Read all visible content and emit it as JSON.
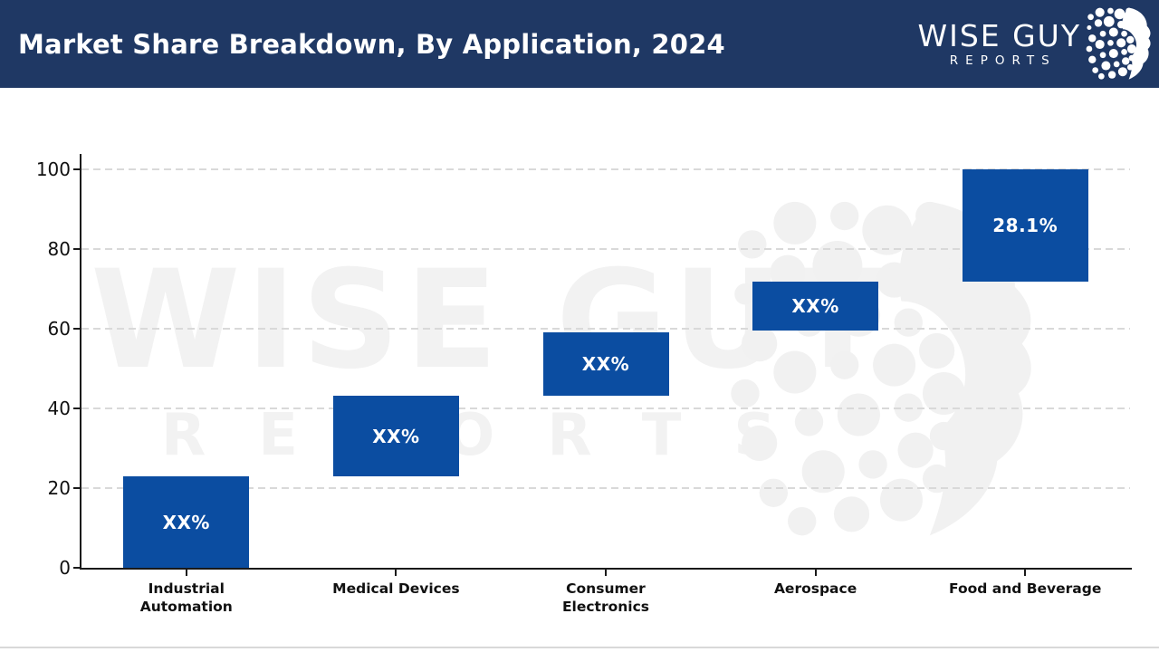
{
  "header": {
    "title": "Market Share Breakdown, By Application, 2024",
    "logo": {
      "primary": "WISE GUY",
      "secondary": "REPORTS"
    }
  },
  "watermark": {
    "primary": "WISE GUY",
    "secondary": "REPORTS"
  },
  "colors": {
    "header_bg": "#1f3864",
    "bar": "#0b4da1",
    "bar_label": "#ffffff",
    "grid": "#d9d9d9",
    "axis": "#1a1a1a",
    "watermark": "#f2f2f2"
  },
  "chart_data": {
    "type": "bar",
    "subtype": "waterfall",
    "title": "Market Share Breakdown, By Application, 2024",
    "categories": [
      "Industrial Automation",
      "Medical Devices",
      "Consumer Electronics",
      "Aerospace",
      "Food and Beverage"
    ],
    "category_label_lines": [
      [
        "Industrial",
        "Automation"
      ],
      [
        "Medical Devices"
      ],
      [
        "Consumer",
        "Electronics"
      ],
      [
        "Aerospace"
      ],
      [
        "Food and Beverage"
      ]
    ],
    "segments": [
      {
        "category": "Industrial Automation",
        "start": 0,
        "end": 22.9,
        "label": "XX%"
      },
      {
        "category": "Medical Devices",
        "start": 22.9,
        "end": 43.1,
        "label": "XX%"
      },
      {
        "category": "Consumer Electronics",
        "start": 43.1,
        "end": 59.1,
        "label": "XX%"
      },
      {
        "category": "Aerospace",
        "start": 59.5,
        "end": 71.9,
        "label": "XX%"
      },
      {
        "category": "Food and Beverage",
        "start": 71.9,
        "end": 100.0,
        "label": "28.1%"
      }
    ],
    "xlabel": "",
    "ylabel": "",
    "yticks": [
      0,
      20,
      40,
      60,
      80,
      100
    ],
    "ylim": [
      0,
      104
    ],
    "grid": "horizontal-dashed",
    "legend": "none"
  }
}
